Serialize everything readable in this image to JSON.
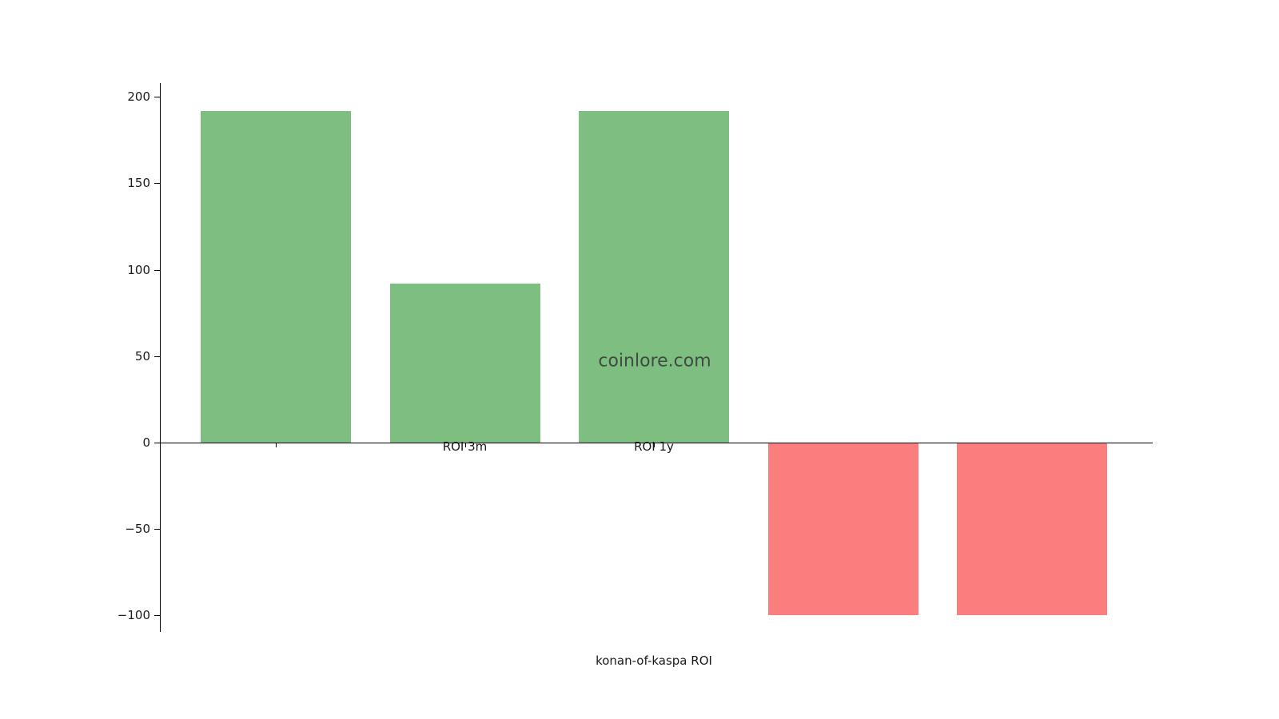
{
  "chart_data": {
    "type": "bar",
    "categories": [
      "",
      "ROI 3m",
      "ROI 1y",
      "",
      ""
    ],
    "values": [
      192,
      92,
      192,
      -100,
      -100
    ],
    "title": "",
    "xlabel": "konan-of-kaspa ROI",
    "ylabel": "",
    "yticks": [
      200,
      150,
      100,
      50,
      0,
      -50,
      -100
    ],
    "ytick_labels": [
      "200",
      "150",
      "100",
      "50",
      "0",
      "−50",
      "−100"
    ],
    "ylim": [
      -109,
      209
    ],
    "grid": false,
    "legend_position": "none",
    "xtick_visible": [
      true,
      true,
      true,
      false,
      false
    ],
    "positive_color": "#7ebe80",
    "negative_color": "#fc7d7d",
    "axis_color": "#000000",
    "watermark": "coinlore.com"
  }
}
